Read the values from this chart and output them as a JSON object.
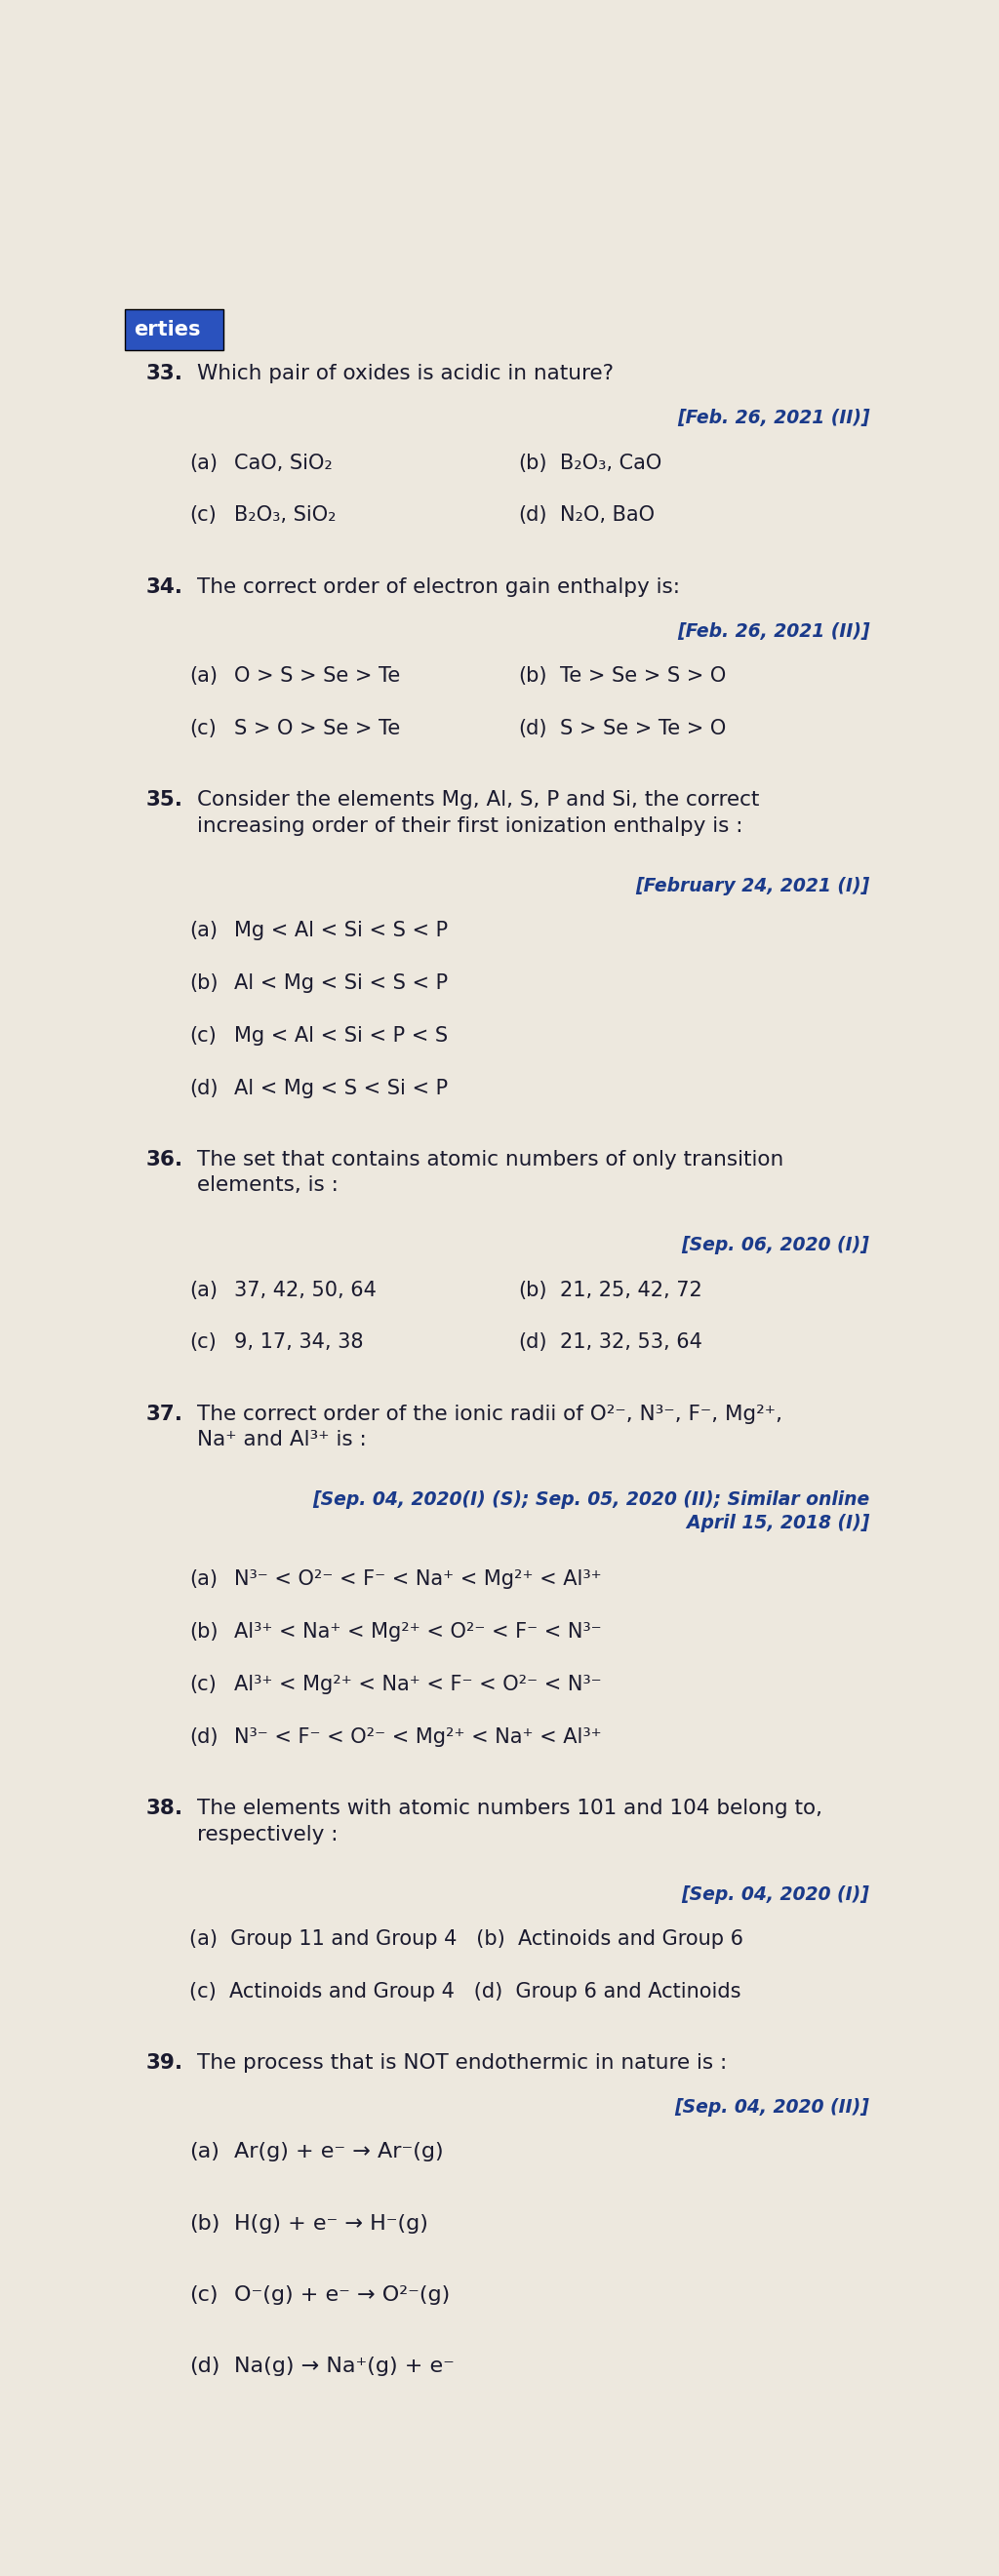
{
  "background_color": "#ede8de",
  "header_bg": "#2a52be",
  "header_text": "erties",
  "header_text_color": "#ffffff",
  "body_text_color": "#1a1a2e",
  "blue_text_color": "#1a3a8a",
  "page_width": 10.24,
  "page_height": 26.41,
  "questions": [
    {
      "number": "33.",
      "text": "Which pair of oxides is acidic in nature?",
      "ref": "[Feb. 26, 2021 (II)]",
      "ref_align": "right",
      "layout": "two_col",
      "options": [
        {
          "label": "(a)",
          "text": "CaO, SiO₂",
          "col": 0
        },
        {
          "label": "(b)",
          "text": "B₂O₃, CaO",
          "col": 1
        },
        {
          "label": "(c)",
          "text": "B₂O₃, SiO₂",
          "col": 0
        },
        {
          "label": "(d)",
          "text": "N₂O, BaO",
          "col": 1
        }
      ]
    },
    {
      "number": "34.",
      "text": "The correct order of electron gain enthalpy is:",
      "ref": "[Feb. 26, 2021 (II)]",
      "ref_align": "right",
      "layout": "two_col",
      "options": [
        {
          "label": "(a)",
          "text": "O > S > Se > Te",
          "col": 0
        },
        {
          "label": "(b)",
          "text": "Te > Se > S > O",
          "col": 1
        },
        {
          "label": "(c)",
          "text": "S > O > Se > Te",
          "col": 0
        },
        {
          "label": "(d)",
          "text": "S > Se > Te > O",
          "col": 1
        }
      ]
    },
    {
      "number": "35.",
      "text": "Consider the elements Mg, Al, S, P and Si, the correct\nincreasing order of their first ionization enthalpy is :",
      "ref": "[February 24, 2021 (I)]",
      "ref_align": "right",
      "layout": "vertical",
      "options": [
        {
          "label": "(a)",
          "text": "Mg < Al < Si < S < P"
        },
        {
          "label": "(b)",
          "text": "Al < Mg < Si < S < P"
        },
        {
          "label": "(c)",
          "text": "Mg < Al < Si < P < S"
        },
        {
          "label": "(d)",
          "text": "Al < Mg < S < Si < P"
        }
      ]
    },
    {
      "number": "36.",
      "text": "The set that contains atomic numbers of only transition\nelements, is :",
      "ref": "[Sep. 06, 2020 (I)]",
      "ref_align": "right",
      "layout": "two_col",
      "options": [
        {
          "label": "(a)",
          "text": "37, 42, 50, 64",
          "col": 0
        },
        {
          "label": "(b)",
          "text": "21, 25, 42, 72",
          "col": 1
        },
        {
          "label": "(c)",
          "text": "9, 17, 34, 38",
          "col": 0
        },
        {
          "label": "(d)",
          "text": "21, 32, 53, 64",
          "col": 1
        }
      ]
    },
    {
      "number": "37.",
      "text": "The correct order of the ionic radii of O²⁻, N³⁻, F⁻, Mg²⁺,\nNa⁺ and Al³⁺ is :",
      "ref": "[Sep. 04, 2020(I) (S); Sep. 05, 2020 (II); Similar online\n                                                    April 15, 2018 (I)]",
      "ref_align": "right",
      "layout": "vertical",
      "options": [
        {
          "label": "(a)",
          "text": "N³⁻ < O²⁻ < F⁻ < Na⁺ < Mg²⁺ < Al³⁺"
        },
        {
          "label": "(b)",
          "text": "Al³⁺ < Na⁺ < Mg²⁺ < O²⁻ < F⁻ < N³⁻"
        },
        {
          "label": "(c)",
          "text": "Al³⁺ < Mg²⁺ < Na⁺ < F⁻ < O²⁻ < N³⁻"
        },
        {
          "label": "(d)",
          "text": "N³⁻ < F⁻ < O²⁻ < Mg²⁺ < Na⁺ < Al³⁺"
        }
      ]
    },
    {
      "number": "38.",
      "text": "The elements with atomic numbers 101 and 104 belong to,\nrespectively :",
      "ref": "[Sep. 04, 2020 (I)]",
      "ref_align": "right",
      "layout": "two_col_inline",
      "options": [
        {
          "label": "(a)",
          "text": "Group 11 and Group 4",
          "col": 0
        },
        {
          "label": "(b)",
          "text": "Actinoids and Group 6",
          "col": 1
        },
        {
          "label": "(c)",
          "text": "Actinoids and Group 4",
          "col": 0
        },
        {
          "label": "(d)",
          "text": "Group 6 and Actinoids",
          "col": 1
        }
      ]
    },
    {
      "number": "39.",
      "text": "The process that is NOT endothermic in nature is :",
      "ref": "[Sep. 04, 2020 (II)]",
      "ref_align": "right",
      "layout": "vertical_large",
      "options": [
        {
          "label": "(a)",
          "text": "Ar(g) + e⁻ → Ar⁻(g)"
        },
        {
          "label": "(b)",
          "text": "H(g) + e⁻ → H⁻(g)"
        },
        {
          "label": "(c)",
          "text": "O⁻(g) + e⁻ → O²⁻(g)"
        },
        {
          "label": "(d)",
          "text": "Na(g) → Na⁺(g) + e⁻"
        }
      ]
    }
  ]
}
